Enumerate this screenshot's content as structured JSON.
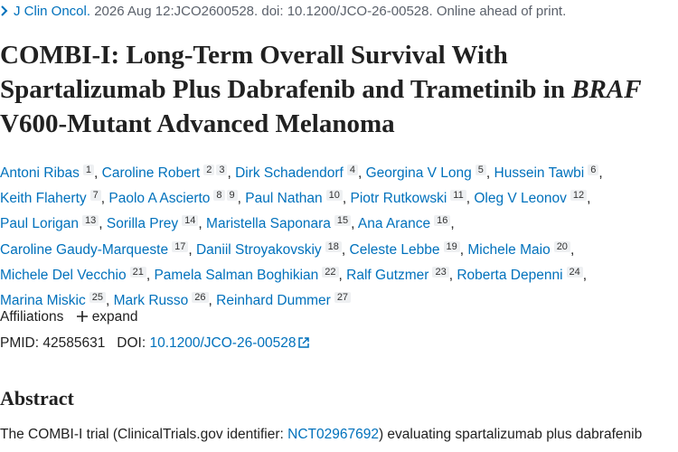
{
  "citation": {
    "journal": "J Clin Oncol.",
    "details": "2026 Aug 12:JCO2600528. doi: 10.1200/JCO-26-00528. Online ahead of print."
  },
  "title": {
    "before": "COMBI-I: Long-Term Overall Survival With Spartalizumab Plus Dabrafenib and Trametinib in",
    "italic": "BRAF",
    "after": "V600-Mutant Advanced Melanoma"
  },
  "authors": {
    "separator": ",",
    "list": [
      {
        "name": "Antoni Ribas",
        "affiliations": [
          1
        ]
      },
      {
        "name": "Caroline Robert",
        "affiliations": [
          2,
          3
        ]
      },
      {
        "name": "Dirk Schadendorf",
        "affiliations": [
          4
        ]
      },
      {
        "name": "Georgina V Long",
        "affiliations": [
          5
        ]
      },
      {
        "name": "Hussein Tawbi",
        "affiliations": [
          6
        ]
      },
      {
        "name": "Keith Flaherty",
        "affiliations": [
          7
        ]
      },
      {
        "name": "Paolo A Ascierto",
        "affiliations": [
          8,
          9
        ]
      },
      {
        "name": "Paul Nathan",
        "affiliations": [
          10
        ]
      },
      {
        "name": "Piotr Rutkowski",
        "affiliations": [
          11
        ]
      },
      {
        "name": "Oleg V Leonov",
        "affiliations": [
          12
        ]
      },
      {
        "name": "Paul Lorigan",
        "affiliations": [
          13
        ]
      },
      {
        "name": "Sorilla Prey",
        "affiliations": [
          14
        ]
      },
      {
        "name": "Maristella Saponara",
        "affiliations": [
          15
        ]
      },
      {
        "name": "Ana Arance",
        "affiliations": [
          16
        ]
      },
      {
        "name": "Caroline Gaudy-Marqueste",
        "affiliations": [
          17
        ]
      },
      {
        "name": "Daniil Stroyakovskiy",
        "affiliations": [
          18
        ]
      },
      {
        "name": "Celeste Lebbe",
        "affiliations": [
          19
        ]
      },
      {
        "name": "Michele Maio",
        "affiliations": [
          20
        ]
      },
      {
        "name": "Michele Del Vecchio",
        "affiliations": [
          21
        ]
      },
      {
        "name": "Pamela Salman Boghikian",
        "affiliations": [
          22
        ]
      },
      {
        "name": "Ralf Gutzmer",
        "affiliations": [
          23
        ]
      },
      {
        "name": "Roberta Depenni",
        "affiliations": [
          24
        ]
      },
      {
        "name": "Marina Miskic",
        "affiliations": [
          25
        ]
      },
      {
        "name": "Mark Russo",
        "affiliations": [
          26
        ]
      },
      {
        "name": "Reinhard Dummer",
        "affiliations": [
          27
        ]
      }
    ]
  },
  "affiliations": {
    "label": "Affiliations",
    "toggle": "expand"
  },
  "ids": {
    "pmid_label": "PMID:",
    "pmid": "42585631",
    "doi_label": "DOI:",
    "doi": "10.1200/JCO-26-00528"
  },
  "abstract": {
    "heading": "Abstract",
    "text_before": "The COMBI-I trial (ClinicalTrials.gov identifier:",
    "trial_link": "NCT02967692",
    "text_after": ") evaluating spartalizumab plus dabrafenib"
  }
}
